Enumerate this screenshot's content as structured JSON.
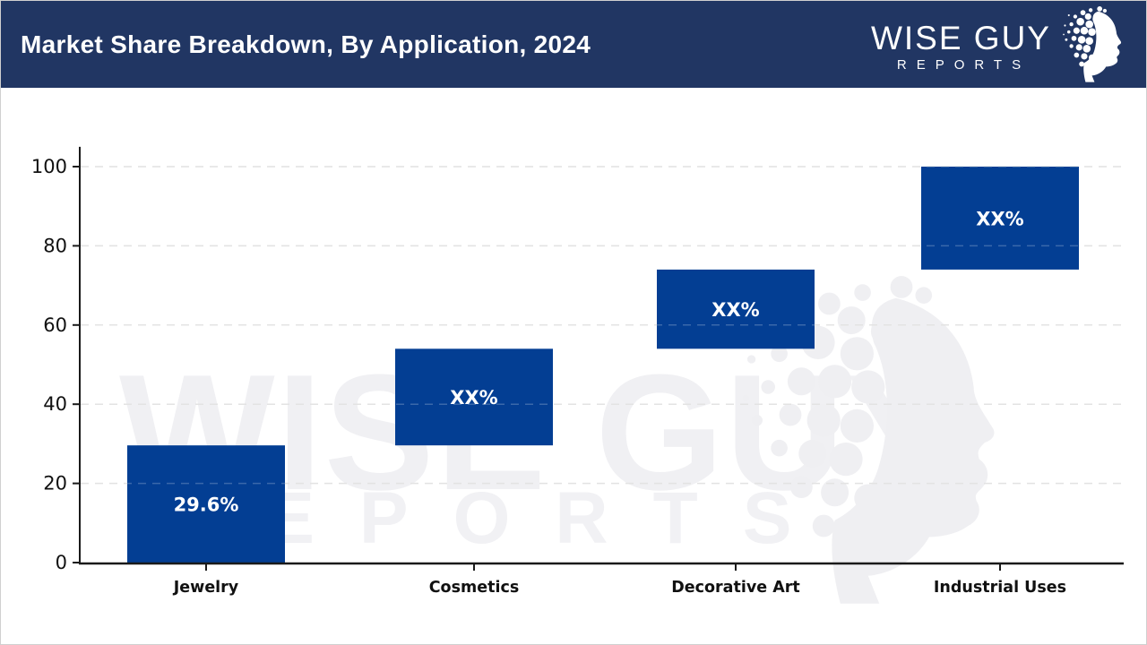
{
  "header": {
    "title": "Market Share Breakdown, By Application, 2024",
    "bg_color": "#213663",
    "logo": {
      "line1": "WISE GUY",
      "line2": "REPORTS"
    }
  },
  "watermark": {
    "line1": "WISE GUY",
    "line2": "REPORTS"
  },
  "chart_data": {
    "type": "bar",
    "subtype": "waterfall-breakdown",
    "title": "Market Share Breakdown, By Application, 2024",
    "categories": [
      "Jewelry",
      "Cosmetics",
      "Decorative Art",
      "Industrial Uses"
    ],
    "series": [
      {
        "name": "Market share (%)",
        "segments": [
          {
            "category": "Jewelry",
            "start": 0,
            "end": 29.6,
            "label": "29.6%"
          },
          {
            "category": "Cosmetics",
            "start": 29.6,
            "end": 54,
            "label": "XX%"
          },
          {
            "category": "Decorative Art",
            "start": 54,
            "end": 74,
            "label": "XX%"
          },
          {
            "category": "Industrial Uses",
            "start": 74,
            "end": 100,
            "label": "XX%"
          }
        ]
      }
    ],
    "xlabel": "",
    "ylabel": "",
    "yticks": [
      0,
      20,
      40,
      60,
      80,
      100
    ],
    "ylim": [
      0,
      105
    ],
    "grid": "horizontal-dashed",
    "legend": "none",
    "bar_color": "#033E93",
    "bar_label_color": "#ffffff",
    "axis_color": "#1a1a1a",
    "grid_color": "#dcdcdc",
    "tick_label_color": "#111111"
  }
}
